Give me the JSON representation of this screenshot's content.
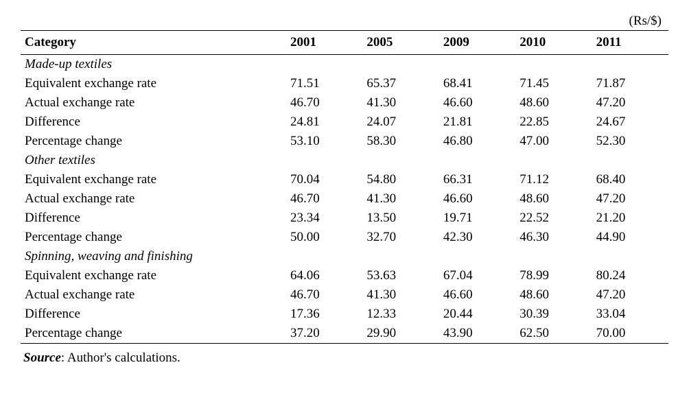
{
  "unit": "(Rs/$)",
  "columns": [
    "Category",
    "2001",
    "2005",
    "2009",
    "2010",
    "2011"
  ],
  "sections": [
    {
      "title": "Made-up textiles",
      "rows": [
        {
          "label": "Equivalent exchange rate",
          "values": [
            "71.51",
            "65.37",
            "68.41",
            "71.45",
            "71.87"
          ]
        },
        {
          "label": "Actual exchange rate",
          "values": [
            "46.70",
            "41.30",
            "46.60",
            "48.60",
            "47.20"
          ]
        },
        {
          "label": "Difference",
          "values": [
            "24.81",
            "24.07",
            "21.81",
            "22.85",
            "24.67"
          ]
        },
        {
          "label": "Percentage change",
          "values": [
            "53.10",
            "58.30",
            "46.80",
            "47.00",
            "52.30"
          ]
        }
      ]
    },
    {
      "title": "Other textiles",
      "rows": [
        {
          "label": "Equivalent exchange rate",
          "values": [
            "70.04",
            "54.80",
            "66.31",
            "71.12",
            "68.40"
          ]
        },
        {
          "label": "Actual exchange rate",
          "values": [
            "46.70",
            "41.30",
            "46.60",
            "48.60",
            "47.20"
          ]
        },
        {
          "label": "Difference",
          "values": [
            "23.34",
            "13.50",
            "19.71",
            "22.52",
            "21.20"
          ]
        },
        {
          "label": "Percentage change",
          "values": [
            "50.00",
            "32.70",
            "42.30",
            "46.30",
            "44.90"
          ]
        }
      ]
    },
    {
      "title": "Spinning, weaving and finishing",
      "rows": [
        {
          "label": "Equivalent exchange rate",
          "values": [
            "64.06",
            "53.63",
            "67.04",
            "78.99",
            "80.24"
          ]
        },
        {
          "label": "Actual exchange rate",
          "values": [
            "46.70",
            "41.30",
            "46.60",
            "48.60",
            "47.20"
          ]
        },
        {
          "label": "Difference",
          "values": [
            "17.36",
            "12.33",
            "20.44",
            "30.39",
            "33.04"
          ]
        },
        {
          "label": "Percentage change",
          "values": [
            "37.20",
            "29.90",
            "43.90",
            "62.50",
            "70.00"
          ]
        }
      ]
    }
  ],
  "source_label": "Source",
  "source_text": ": Author's calculations."
}
